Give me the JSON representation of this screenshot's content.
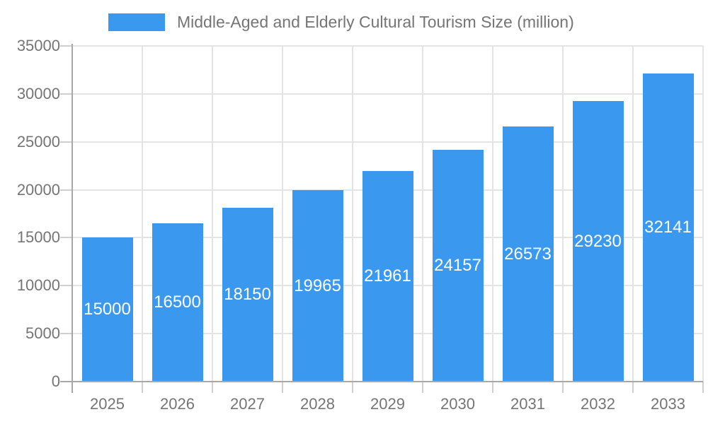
{
  "chart_data": {
    "type": "bar",
    "title": "",
    "legend": "Middle-Aged and Elderly Cultural Tourism Size (million)",
    "legend_position": "top",
    "categories": [
      "2025",
      "2026",
      "2027",
      "2028",
      "2029",
      "2030",
      "2031",
      "2032",
      "2033"
    ],
    "values": [
      15000,
      16500,
      18150,
      19965,
      21961,
      24157,
      26573,
      29230,
      32141
    ],
    "bar_value_labels": [
      "15000",
      "16500",
      "18150",
      "19965",
      "21961",
      "24157",
      "26573",
      "29230",
      "32141"
    ],
    "xlabel": "",
    "ylabel": "",
    "ylim": [
      0,
      35000
    ],
    "yticks": [
      0,
      5000,
      10000,
      15000,
      20000,
      25000,
      30000,
      35000
    ],
    "ytick_labels": [
      "0",
      "5000",
      "10000",
      "15000",
      "20000",
      "25000",
      "30000",
      "35000"
    ],
    "grid": true,
    "value_label_position": "inside-center",
    "colors": {
      "bar": "#3A99EE",
      "axis_text": "#757575",
      "value_label_text": "#FFFFFF",
      "gridline": "#E4E4E4",
      "tick": "#CFCFCF",
      "axis_line": "#A8A8A8",
      "background": "#FFFFFF"
    }
  }
}
